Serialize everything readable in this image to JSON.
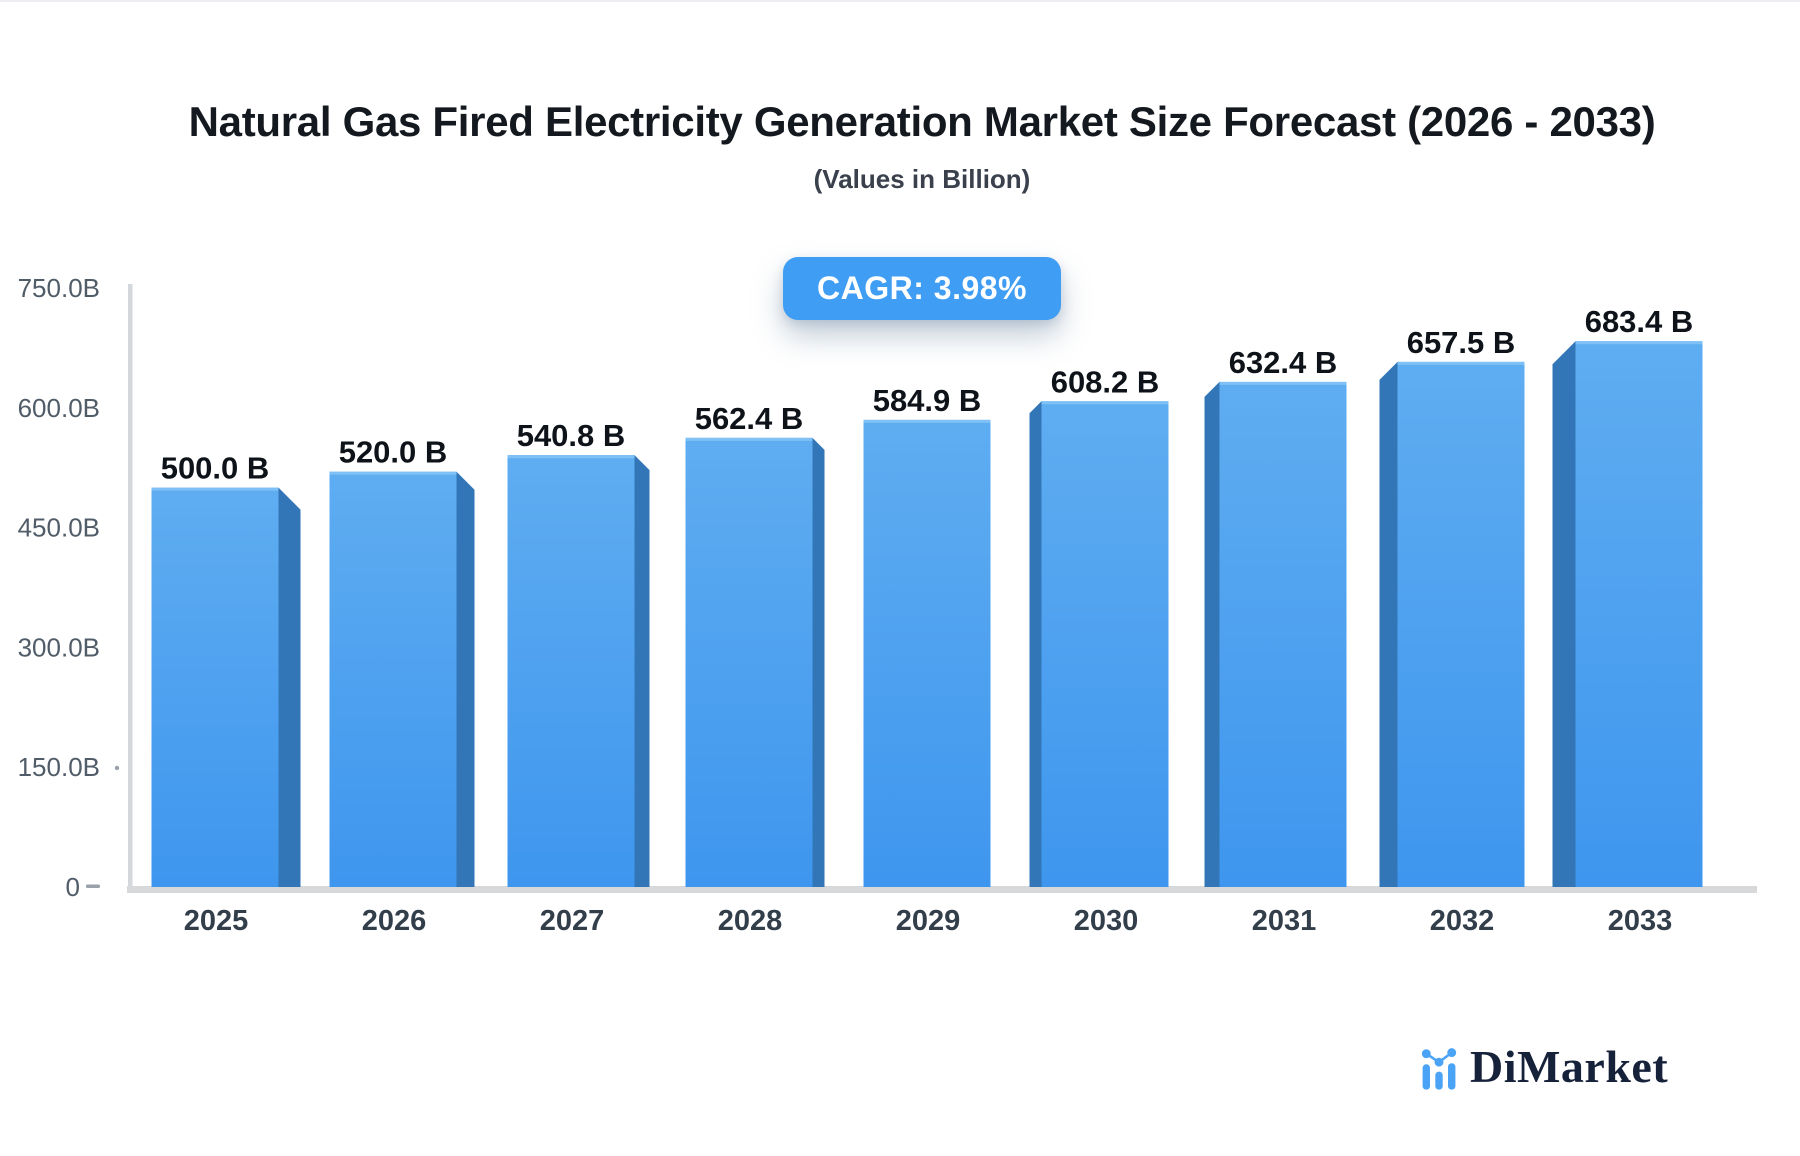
{
  "chart_data": {
    "type": "bar",
    "title": "Natural Gas Fired Electricity Generation Market Size Forecast (2026 - 2033)",
    "subtitle": "(Values in Billion)",
    "categories": [
      "2025",
      "2026",
      "2027",
      "2028",
      "2029",
      "2030",
      "2031",
      "2032",
      "2033"
    ],
    "values": [
      500.0,
      520.0,
      540.8,
      562.4,
      584.9,
      608.2,
      632.4,
      657.5,
      683.4
    ],
    "value_labels": [
      "500.0 B",
      "520.0 B",
      "540.8 B",
      "562.4 B",
      "584.9 B",
      "608.2 B",
      "632.4 B",
      "657.5 B",
      "683.4 B"
    ],
    "unit": "Billion",
    "cagr": "3.98%",
    "ylim": [
      0,
      750
    ],
    "yticks": [
      {
        "label": "750.0B",
        "value": 750
      },
      {
        "label": "600.0B",
        "value": 600
      },
      {
        "label": "450.0B",
        "value": 450
      },
      {
        "label": "300.0B",
        "value": 300
      },
      {
        "label": "150.0B",
        "value": 150
      },
      {
        "label": "0",
        "value": 0
      }
    ],
    "grid": false,
    "legend": "none",
    "style": "pseudo-3d-center-perspective",
    "side_widths": [
      22,
      18,
      15,
      12,
      0,
      12,
      15,
      18,
      23
    ],
    "colors": {
      "front_top": "#5fadf1",
      "front_bottom": "#3e96ee",
      "side": "#3276b7",
      "top_edge": "#7fc1f6",
      "axis": "#d4d7dc",
      "floor": "#d7d8da",
      "tick": "#99a1ab"
    }
  },
  "badge": {
    "label": "CAGR: 3.98%",
    "bg": "#3f9df3",
    "text_color": "#ffffff"
  },
  "logo": {
    "text": "DiMarket",
    "icon": "mini-bar-line-chart-icon",
    "icon_color": "#4ba3f5",
    "text_color": "#16213a"
  }
}
